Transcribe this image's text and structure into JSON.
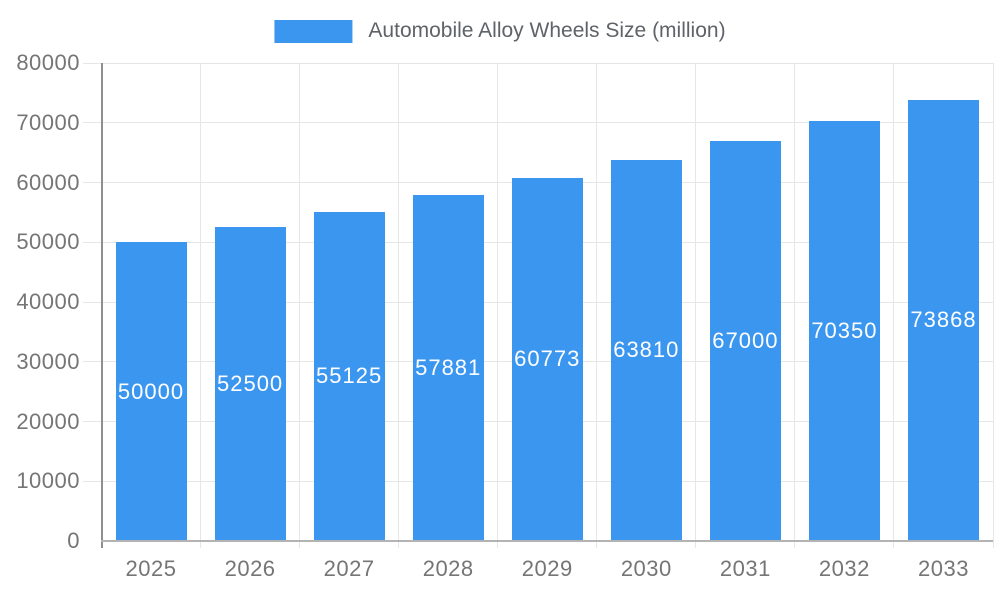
{
  "legend": {
    "label": "Automobile Alloy Wheels Size (million)",
    "swatch_icon": "legend-color-swatch"
  },
  "chart_data": {
    "type": "bar",
    "title": "",
    "legend_position": "top-center",
    "series_name": "Automobile Alloy Wheels Size (million)",
    "categories": [
      "2025",
      "2026",
      "2027",
      "2028",
      "2029",
      "2030",
      "2031",
      "2032",
      "2033"
    ],
    "values": [
      50000,
      52500,
      55125,
      57881,
      60773,
      63810,
      67000,
      70350,
      73868
    ],
    "value_labels": [
      "50000",
      "52500",
      "55125",
      "57881",
      "60773",
      "63810",
      "67000",
      "70350",
      "73868"
    ],
    "xlabel": "",
    "ylabel": "",
    "ylim": [
      0,
      80000
    ],
    "ytick_step": 10000,
    "ytick_labels": [
      "0",
      "10000",
      "20000",
      "30000",
      "40000",
      "50000",
      "60000",
      "70000",
      "80000"
    ],
    "grid": true,
    "colors": {
      "bar": "#3B96F0",
      "value_label": "#FFFFFF",
      "axis_text": "#757575",
      "legend_text": "#5F6368",
      "gridline": "#E6E6E6",
      "axis_line": "#8E8E8E",
      "baseline": "#B3B3B3",
      "background": "#FFFFFF"
    }
  }
}
